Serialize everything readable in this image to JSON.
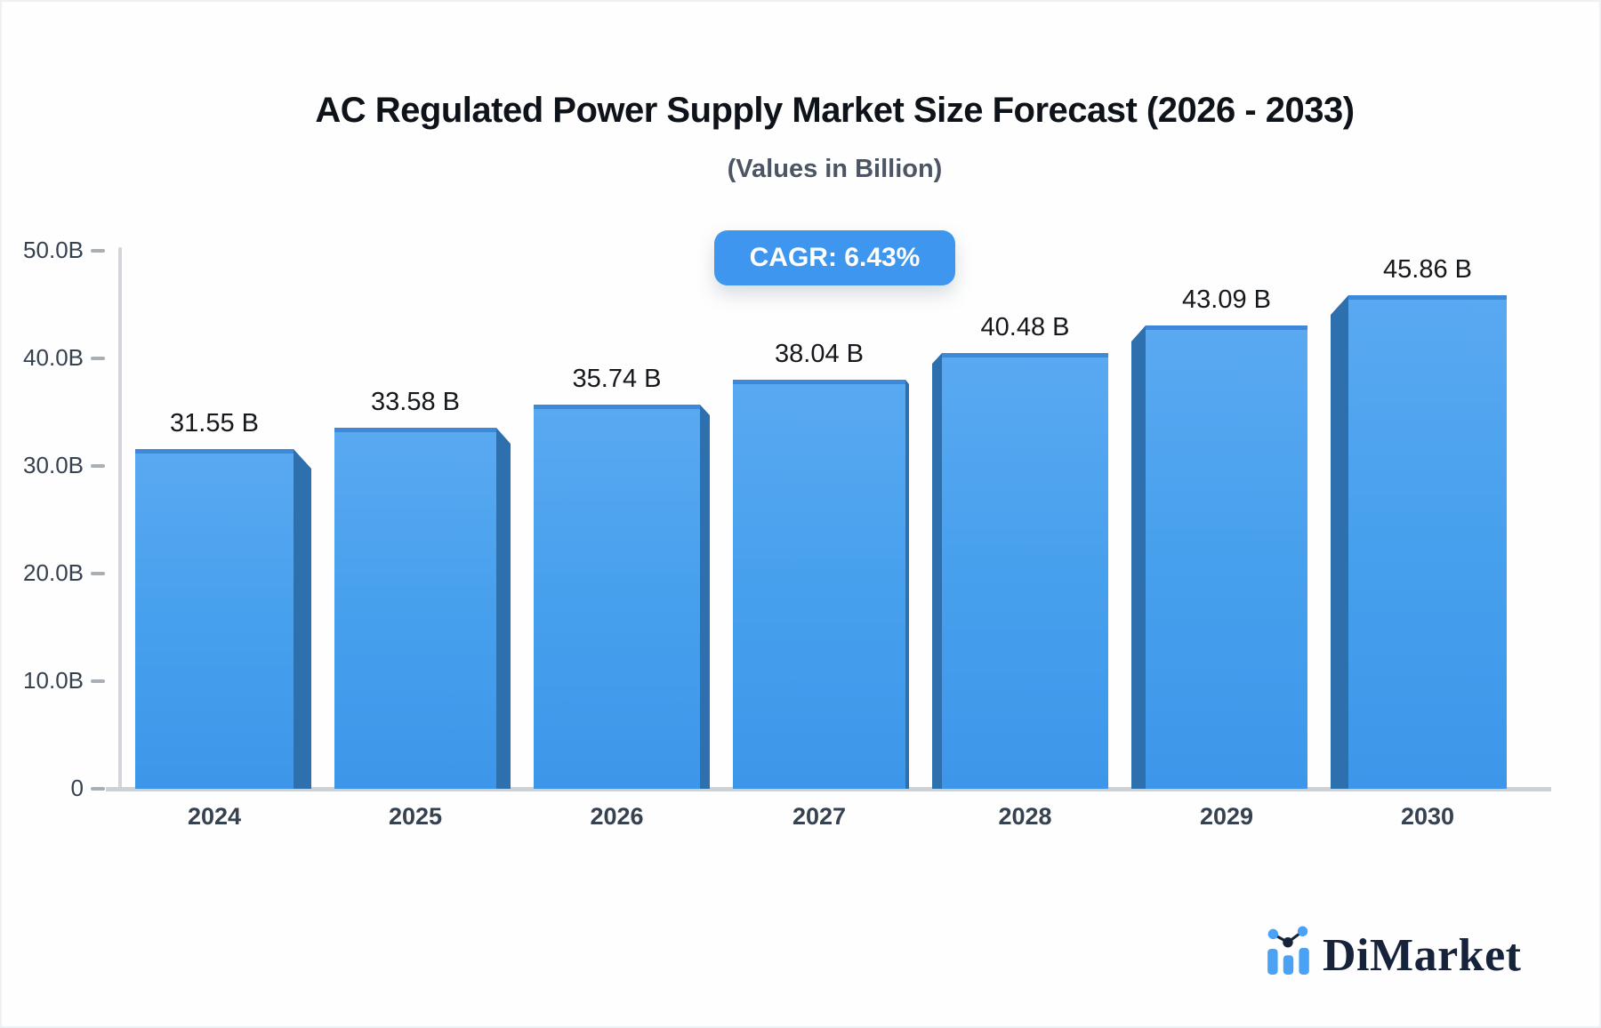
{
  "header": {
    "title": "AC Regulated Power Supply Market Size Forecast (2026 - 2033)",
    "subtitle": "(Values in Billion)"
  },
  "badge": {
    "label": "CAGR: 6.43%"
  },
  "chart_data": {
    "type": "bar",
    "title": "AC Regulated Power Supply Market Size Forecast (2026 - 2033)",
    "subtitle": "(Values in Billion)",
    "categories": [
      "2024",
      "2025",
      "2026",
      "2027",
      "2028",
      "2029",
      "2030"
    ],
    "values": [
      31.55,
      33.58,
      35.74,
      38.04,
      40.48,
      43.09,
      45.86
    ],
    "value_labels": [
      "31.55 B",
      "33.58 B",
      "35.74 B",
      "38.04 B",
      "40.48 B",
      "43.09 B",
      "45.86 B"
    ],
    "unit": "Billion",
    "cagr_annotation": "CAGR: 6.43%",
    "xlabel": "",
    "ylabel": "",
    "ylim": [
      0,
      50
    ],
    "ytick_values": [
      0,
      10,
      20,
      30,
      40,
      50
    ],
    "ytick_labels": [
      "0",
      "10.0B",
      "20.0B",
      "30.0B",
      "40.0B",
      "50.0B"
    ],
    "grid": false,
    "legend": false,
    "bar_style": "3d-perspective",
    "colors": {
      "bar_face_top": "#59a9f1",
      "bar_face_bottom": "#3e96ea",
      "bar_side": "#2e6fad",
      "bar_top_edge": "#3e88d9",
      "badge_bg": "#3e96ee",
      "axis_line": "#ccd1d6",
      "tick": "#a8afb6",
      "title_text": "#0e131a",
      "label_text": "#36424f"
    }
  },
  "logo": {
    "name": "DiMarket",
    "icon": "bar-chart-logo-icon"
  }
}
